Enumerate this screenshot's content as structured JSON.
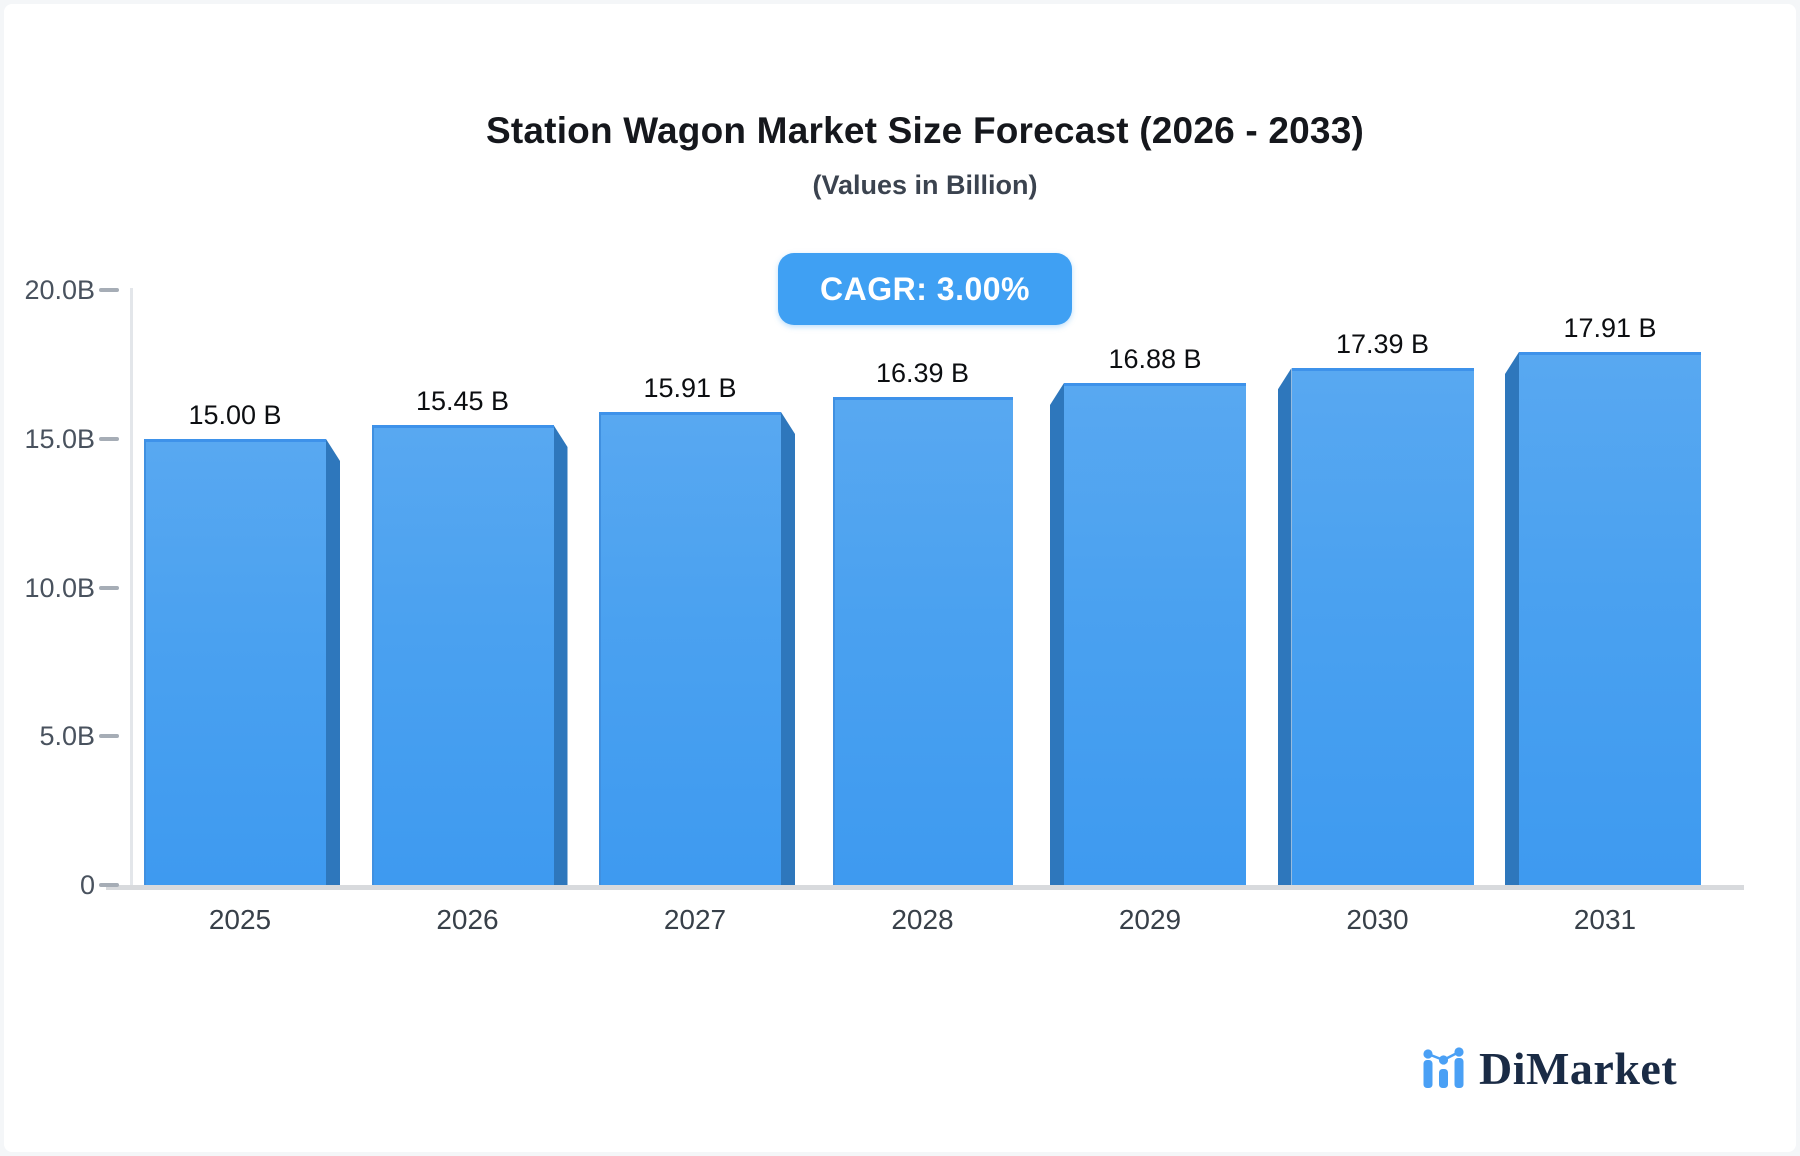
{
  "header": {
    "title": "Station Wagon Market Size Forecast (2026 - 2033)",
    "subtitle": "(Values in Billion)",
    "badge_label": "CAGR: 3.00%"
  },
  "chart_data": {
    "type": "bar",
    "title": "Station Wagon Market Size Forecast (2026 - 2033)",
    "subtitle": "(Values in Billion)",
    "categories": [
      "2025",
      "2026",
      "2027",
      "2028",
      "2029",
      "2030",
      "2031"
    ],
    "values": [
      15.0,
      15.45,
      15.91,
      16.39,
      16.88,
      17.39,
      17.91
    ],
    "bar_labels": [
      "15.00 B",
      "15.45 B",
      "15.91 B",
      "16.39 B",
      "16.88 B",
      "17.39 B",
      "17.91 B"
    ],
    "ylim": [
      0,
      20
    ],
    "yticks": [
      {
        "value": 20,
        "label": "20.0B"
      },
      {
        "value": 15,
        "label": "15.0B"
      },
      {
        "value": 10,
        "label": "10.0B"
      },
      {
        "value": 5,
        "label": "5.0B"
      },
      {
        "value": 0,
        "label": "0"
      }
    ],
    "grid": false,
    "legend": false,
    "annotation": "CAGR: 3.00%"
  },
  "colors": {
    "badge_bg": "#3fa0f3",
    "badge_text": "#ffffff",
    "bar_gradient_top": "#58a8f1",
    "bar_gradient_bottom": "#3e9af0",
    "bar_top_border": "#3e92ea",
    "bar_side_face": "#2e77bc",
    "axis_line": "#e3e6ea",
    "baseline": "#d8dadd",
    "tick_mark": "#a6adb6",
    "tick_label": "#49525e",
    "title_text": "#15171c",
    "brand_text": "#1a2b45",
    "brand_icon_blue": "#4aa0f5"
  },
  "footer": {
    "brand": "DiMarket",
    "icon": "bar-chart-logo-icon"
  }
}
